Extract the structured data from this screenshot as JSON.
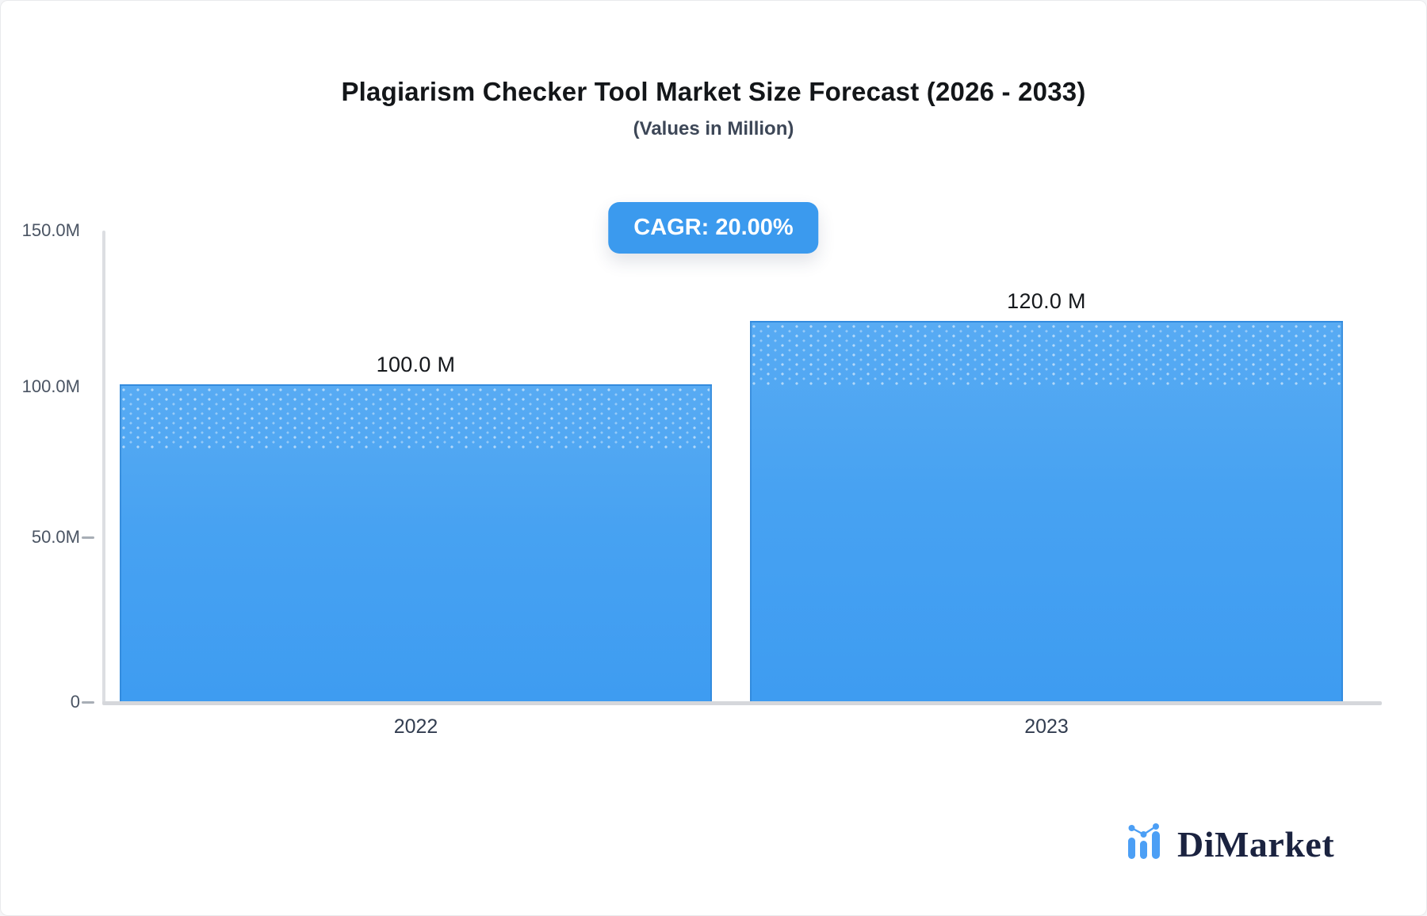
{
  "header": {
    "title": "Plagiarism Checker Tool Market Size Forecast (2026 - 2033)",
    "subtitle": "(Values in Million)",
    "cagr_badge": "CAGR: 20.00%"
  },
  "chart_data": {
    "type": "bar",
    "categories": [
      "2022",
      "2023"
    ],
    "values": [
      100.0,
      120.0
    ],
    "value_labels": [
      "100.0 M",
      "120.0 M"
    ],
    "title": "Plagiarism Checker Tool Market Size Forecast (2026 - 2033)",
    "subtitle": "(Values in Million)",
    "xlabel": "",
    "ylabel": "",
    "ylim": [
      0,
      150
    ],
    "y_ticks": [
      "150.0M",
      "100.0M",
      "50.0M",
      "0"
    ],
    "grid": false,
    "legend": "none",
    "bar_color": "#47A2F2"
  },
  "colors": {
    "accent_blue": "#3B9AEE",
    "bar_fill_top": "#58ABF3",
    "bar_fill_bottom": "#3E9CF1",
    "bar_border": "#2A7DCD",
    "axis_gray": "#D5D7DB",
    "tick_gray": "#A8AEB6",
    "label_dark": "#15181C",
    "logo_navy": "#1B2340",
    "logo_blue": "#4C9FF5"
  },
  "logo": {
    "text": "DiMarket",
    "icon": "bar-chart-logo-icon"
  }
}
